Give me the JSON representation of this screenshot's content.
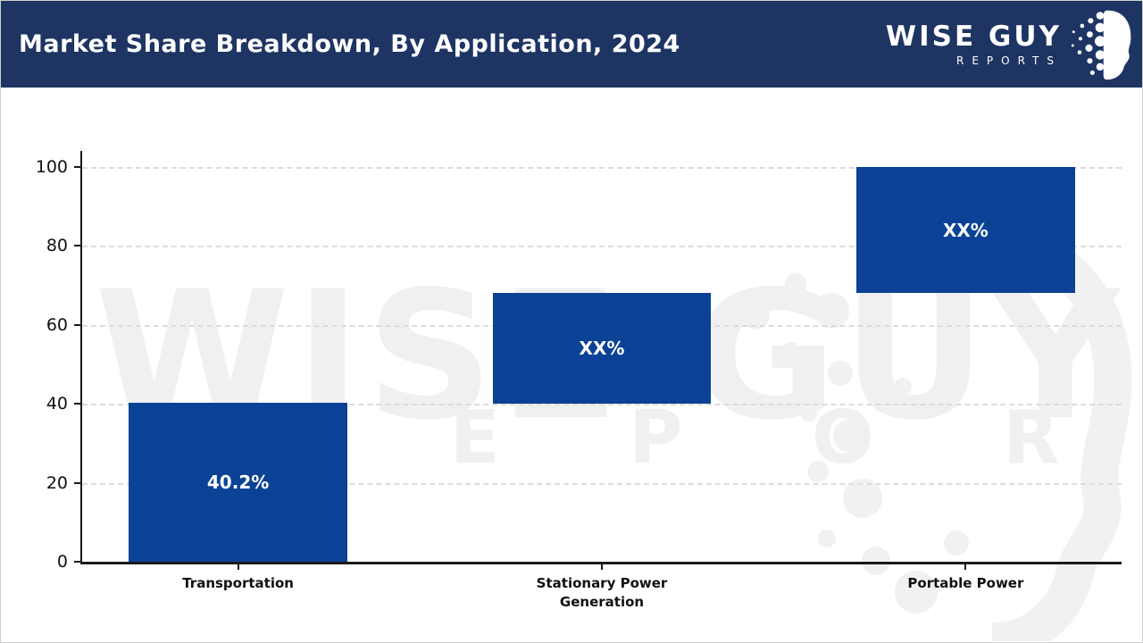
{
  "header": {
    "title": "Market Share Breakdown, By Application, 2024",
    "bg_color": "#1e3563",
    "logo": {
      "line1": "WISE GUY",
      "line2": "REPORTS"
    }
  },
  "watermark": {
    "line1": "WISE GUY",
    "line2": "R E P O R T S"
  },
  "chart_data": {
    "type": "bar",
    "subtype": "floating-stacked-percentage",
    "title": "Market Share Breakdown, By Application, 2024",
    "categories": [
      "Transportation",
      "Stationary Power\nGeneration",
      "Portable Power"
    ],
    "bars": [
      {
        "category": "Transportation",
        "start": 0,
        "end": 40.2,
        "label": "40.2%"
      },
      {
        "category": "Stationary Power Generation",
        "start": 40,
        "end": 68,
        "label": "XX%"
      },
      {
        "category": "Portable Power",
        "start": 68,
        "end": 100,
        "label": "XX%"
      }
    ],
    "ylim": [
      0,
      100
    ],
    "yticks": [
      0,
      20,
      40,
      60,
      80,
      100
    ],
    "grid": "horizontal-dashed",
    "legend": "none",
    "bar_color": "#0b4295",
    "bar_label_color": "#ffffff",
    "axis_color": "#1a1a1a"
  }
}
